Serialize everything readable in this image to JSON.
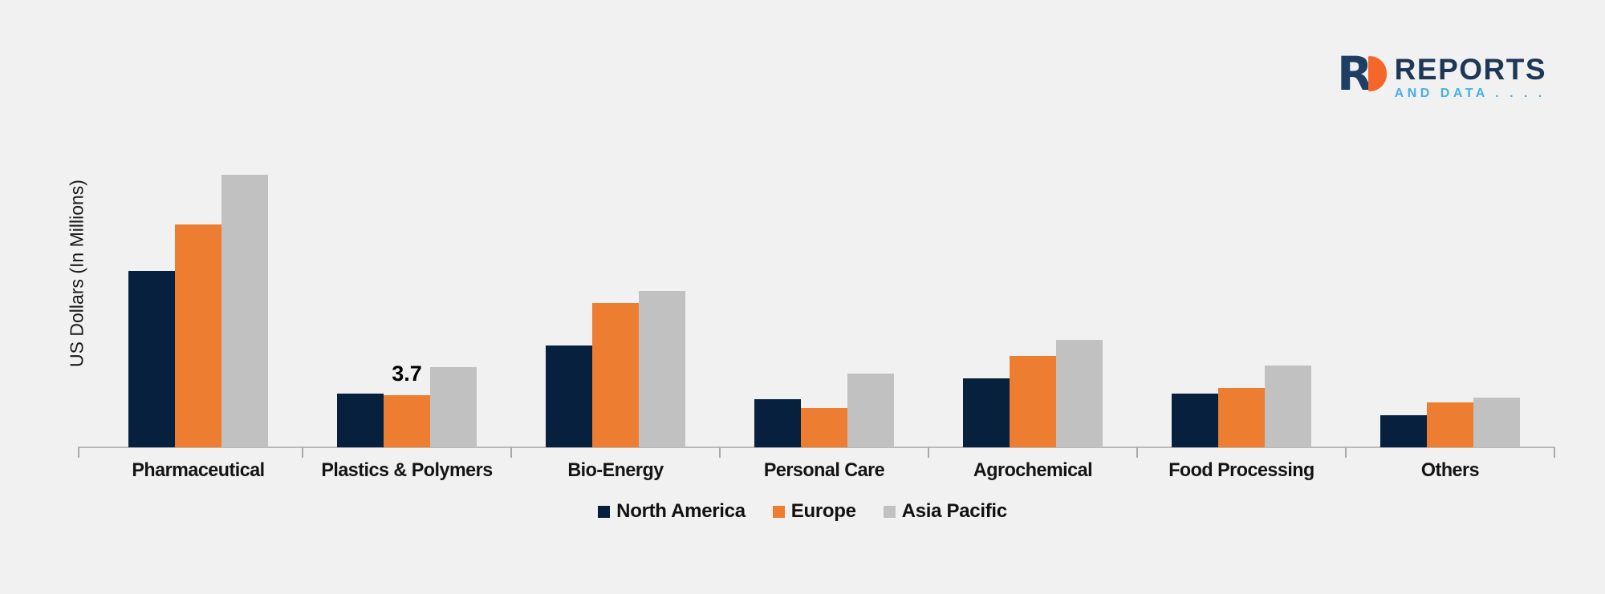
{
  "brand": {
    "monogram_r": "R",
    "name_top": "REPORTS",
    "name_bottom": "AND DATA . . . ."
  },
  "colors": {
    "background": "#f1f1f2",
    "axis_line": "#b9b9b9",
    "tick": "#a9a9a9",
    "north_america": "#07203d",
    "europe": "#ed7d31",
    "asia_pacific": "#c1c1c1",
    "logo_navy": "#1e3f63",
    "logo_orange": "#f4662a",
    "logo_title_navy": "#1d3756",
    "logo_sub_blue": "#45aee6"
  },
  "chart_data": {
    "type": "bar",
    "title": "",
    "ylabel": "US Dollars (In Millions)",
    "xlabel": "",
    "ylim": [
      0,
      20
    ],
    "grid": false,
    "legend_position": "bottom",
    "categories": [
      "Pharmaceutical",
      "Plastics & Polymers",
      "Bio-Energy",
      "Personal Care",
      "Agrochemical",
      "Food Processing",
      "Others"
    ],
    "series": [
      {
        "name": "North America",
        "color": "#07203d",
        "values": [
          12.5,
          3.8,
          7.2,
          3.4,
          4.9,
          3.8,
          2.3
        ]
      },
      {
        "name": "Europe",
        "color": "#ed7d31",
        "values": [
          15.8,
          3.7,
          10.2,
          2.8,
          6.5,
          4.2,
          3.2
        ]
      },
      {
        "name": "Asia Pacific",
        "color": "#c1c1c1",
        "values": [
          19.3,
          5.7,
          11.1,
          5.2,
          7.6,
          5.8,
          3.5
        ]
      }
    ],
    "data_labels": [
      {
        "series": "Europe",
        "category": "Plastics & Polymers",
        "text": "3.7"
      }
    ]
  }
}
